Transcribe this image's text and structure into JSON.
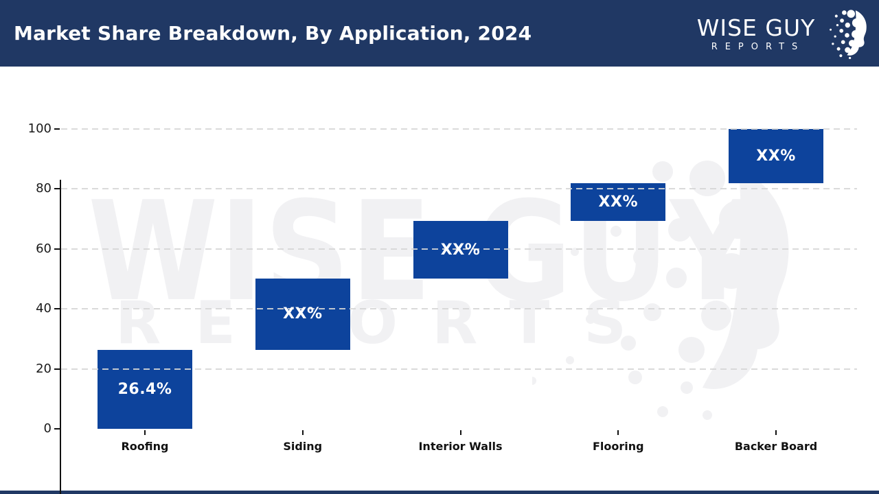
{
  "header": {
    "title": "Market Share Breakdown, By Application, 2024",
    "logo": {
      "line1": "WISE GUY",
      "line2": "REPORTS"
    }
  },
  "watermark": {
    "line1": "WISE GUY",
    "line2": "REPORTS"
  },
  "colors": {
    "header_bg": "#203864",
    "footer_bg": "#203864",
    "bar": "#0d439c",
    "grid": "#d6d6d6",
    "axis": "#111111",
    "bar_label_text": "#ffffff",
    "watermark": "#f1f1f3"
  },
  "chart_data": {
    "type": "bar",
    "subtype": "waterfall",
    "title": "Market Share Breakdown, By Application, 2024",
    "categories": [
      "Roofing",
      "Siding",
      "Interior Walls",
      "Flooring",
      "Backer Board"
    ],
    "segments": [
      {
        "category": "Roofing",
        "start": 0,
        "end": 26.4,
        "label": "26.4%"
      },
      {
        "category": "Siding",
        "start": 26.4,
        "end": 50.0,
        "label": "XX%"
      },
      {
        "category": "Interior Walls",
        "start": 50.0,
        "end": 69.3,
        "label": "XX%"
      },
      {
        "category": "Flooring",
        "start": 69.3,
        "end": 81.8,
        "label": "XX%"
      },
      {
        "category": "Backer Board",
        "start": 81.8,
        "end": 100,
        "label": "XX%"
      }
    ],
    "y_ticks": [
      0,
      20,
      40,
      60,
      80,
      100
    ],
    "ylim": [
      0,
      105
    ],
    "xlabel": "",
    "ylabel": "",
    "grid": "dashed horizontal, drawn over bars",
    "legend": "none"
  }
}
